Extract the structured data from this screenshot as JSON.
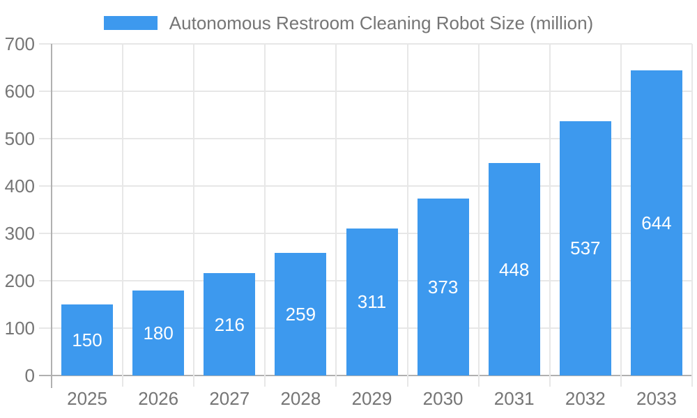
{
  "legend": {
    "label": "Autonomous Restroom Cleaning Robot Size (million)"
  },
  "chart_data": {
    "type": "bar",
    "title": "Autonomous Restroom Cleaning Robot Size (million)",
    "series_name": "Autonomous Restroom Cleaning Robot Size (million)",
    "categories": [
      "2025",
      "2026",
      "2027",
      "2028",
      "2029",
      "2030",
      "2031",
      "2032",
      "2033"
    ],
    "values": [
      150,
      180,
      216,
      259,
      311,
      373,
      448,
      537,
      644
    ],
    "value_labels": [
      "150",
      "180",
      "216",
      "259",
      "311",
      "373",
      "448",
      "537",
      "644"
    ],
    "xlabel": "",
    "ylabel": "",
    "ylim": [
      0,
      700
    ],
    "yticks": [
      0,
      100,
      200,
      300,
      400,
      500,
      600,
      700
    ],
    "grid": true,
    "legend_position": "top",
    "value_label_position": "inside-center",
    "colors": {
      "bar": "#3d99ee",
      "grid": "#e7e7e7",
      "axis": "#b0b0b0",
      "tick_text": "#757575",
      "value_text": "#ffffff",
      "background": "#ffffff"
    }
  }
}
